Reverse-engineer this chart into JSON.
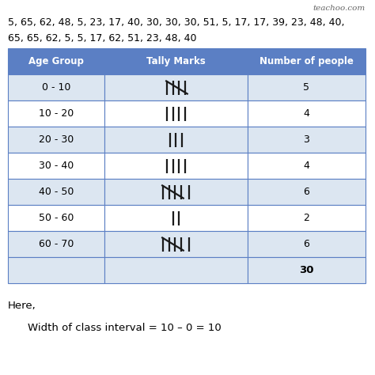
{
  "title_line1": "5, 65, 62, 48, 5, 23, 17, 40, 30, 30, 30, 51, 5, 17, 17, 39, 23, 48, 40,",
  "title_line2": "65, 65, 62, 5, 5, 17, 62, 51, 23, 48, 40",
  "watermark": "teachoo.com",
  "col_headers": [
    "Age Group",
    "Tally Marks",
    "Number of people"
  ],
  "rows": [
    [
      "0 - 10",
      "tally_5",
      "5"
    ],
    [
      "10 - 20",
      "tally_4",
      "4"
    ],
    [
      "20 - 30",
      "tally_3",
      "3"
    ],
    [
      "30 - 40",
      "tally_4",
      "4"
    ],
    [
      "40 - 50",
      "tally_6",
      "6"
    ],
    [
      "50 - 60",
      "tally_2",
      "2"
    ],
    [
      "60 - 70",
      "tally_6",
      "6"
    ]
  ],
  "total_label": "30",
  "footer_line1": "Here,",
  "footer_line2": "Width of class interval = 10 – 0 = 10",
  "header_bg": "#5b7fc4",
  "header_fg": "#ffffff",
  "row_bg_odd": "#dce6f1",
  "row_bg_even": "#ffffff",
  "total_row_bg": "#dce6f1",
  "border_color": "#5b7fc4",
  "text_color": "#000000",
  "bg_color": "#ffffff",
  "tally_color": "#1a1a1a"
}
